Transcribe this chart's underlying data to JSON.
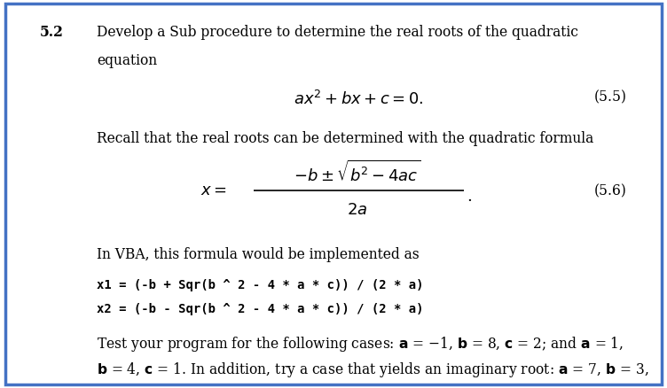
{
  "bg_color": "#ffffff",
  "border_color": "#4472c4",
  "text_color": "#000000",
  "section_num": "5.2",
  "line1": "Develop a Sub procedure to determine the real roots of the quadratic",
  "line2": "equation",
  "eq1_label": "(5.5)",
  "recall_text": "Recall that the real roots can be determined with the quadratic formula",
  "eq2_label": "(5.6)",
  "vba_text": "In VBA, this formula would be implemented as",
  "code_line1": "x1 = (-b + Sqr(b ^ 2 - 4 * a * c)) / (2 * a)",
  "code_line2": "x2 = (-b - Sqr(b ^ 2 - 4 * a * c)) / (2 * a)",
  "fs_main": 11.2,
  "fs_code": 10.0,
  "fs_eq": 13.0,
  "lm": 0.06,
  "indent": 0.145
}
